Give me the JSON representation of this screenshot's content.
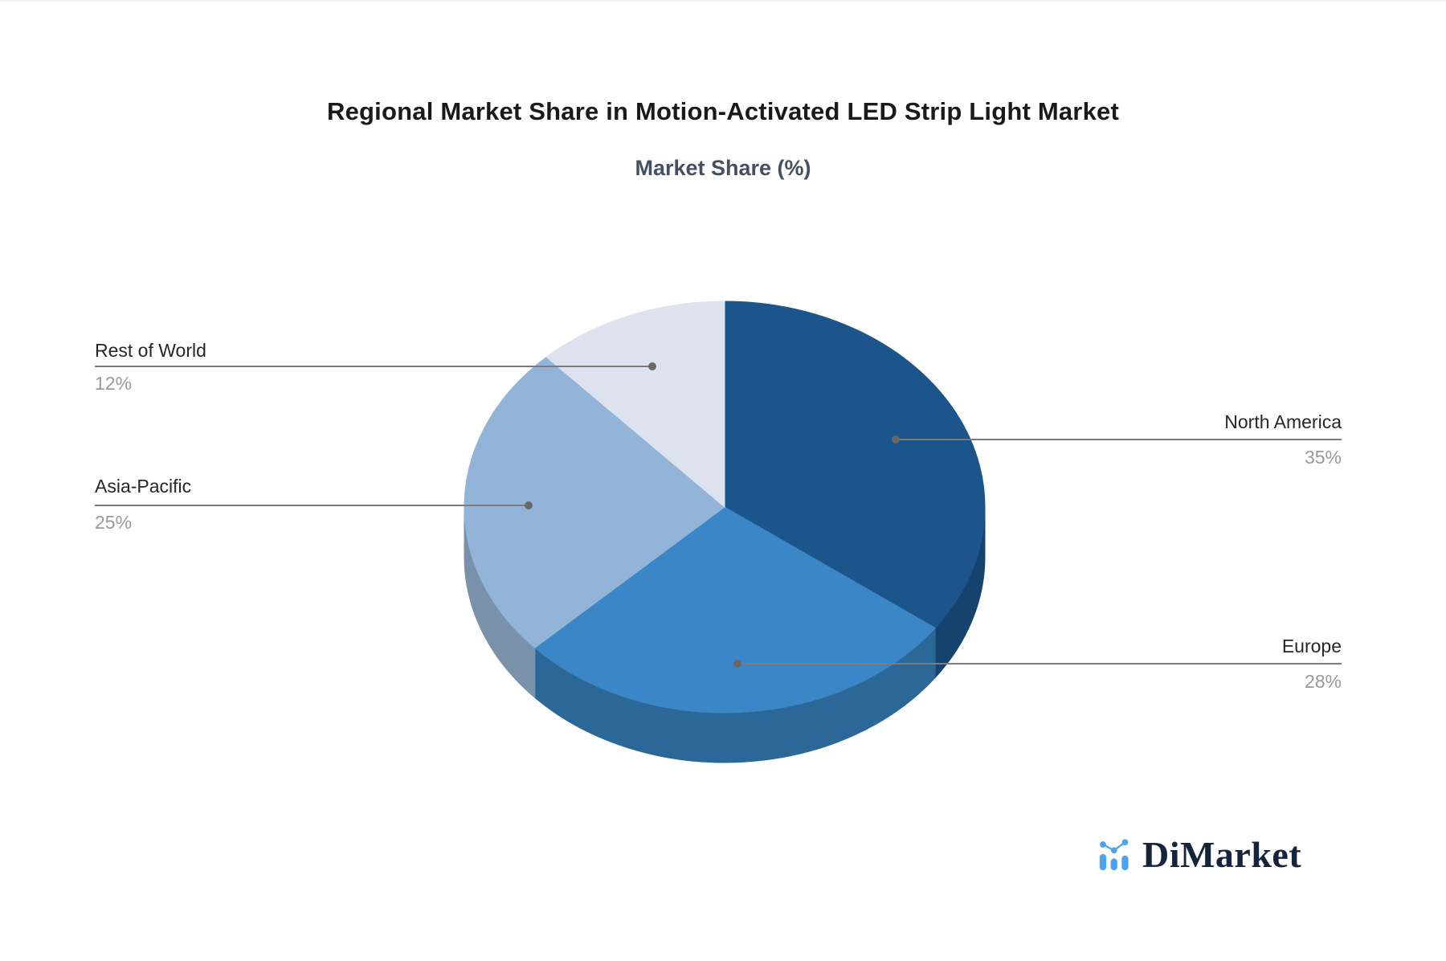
{
  "header": {
    "title": "Regional Market Share in Motion-Activated LED Strip Light Market",
    "subtitle": "Market Share (%)"
  },
  "chart_data": {
    "type": "pie",
    "style": "3d",
    "title": "Regional Market Share in Motion-Activated LED Strip Light Market",
    "subtitle": "Market Share (%)",
    "unit": "percent",
    "start_angle_deg": 0,
    "direction": "clockwise",
    "legend_position": "callout-labels",
    "slices": [
      {
        "label": "North America",
        "value": 35,
        "pct_label": "35%",
        "color": "#1c558b",
        "side_color": "#16436e",
        "label_side": "right"
      },
      {
        "label": "Europe",
        "value": 28,
        "pct_label": "28%",
        "color": "#3b86c7",
        "side_color": "#2c6897",
        "label_side": "right"
      },
      {
        "label": "Asia-Pacific",
        "value": 25,
        "pct_label": "25%",
        "color": "#92b4d8",
        "side_color": "#7a92a9",
        "label_side": "left"
      },
      {
        "label": "Rest of World",
        "value": 12,
        "pct_label": "12%",
        "color": "#dce3ef",
        "side_color": "#b9c4d6",
        "label_side": "left"
      }
    ],
    "colors": {
      "leader_line": "#7b7b7b",
      "leader_dot": "#686868",
      "label_text": "#262626",
      "value_text": "#999999"
    }
  },
  "branding": {
    "logo_text": "DiMarket",
    "logo_icon": "bar-chart-icon",
    "logo_text_color": "#16233c",
    "logo_icon_color": "#4aa2f3"
  }
}
